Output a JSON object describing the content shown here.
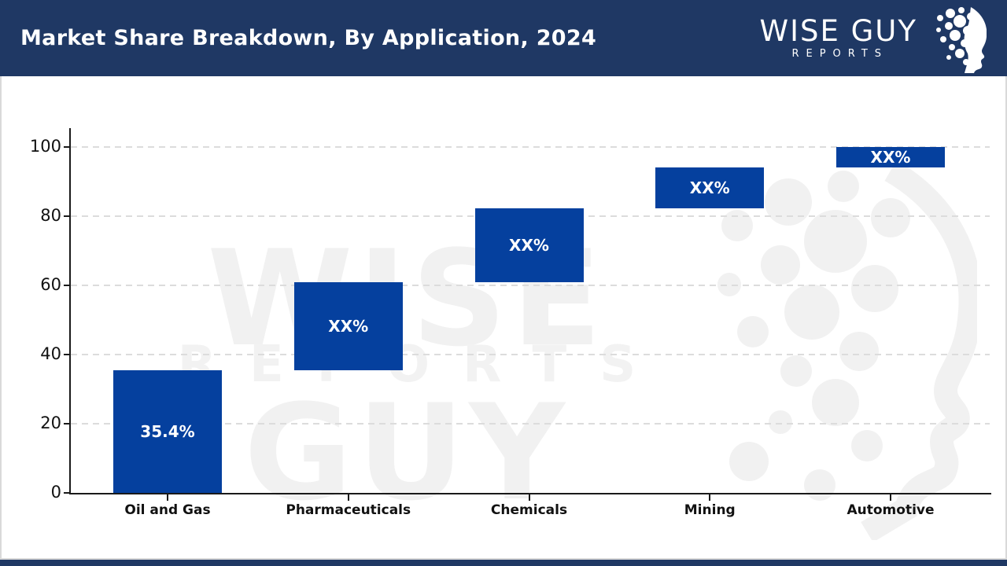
{
  "header": {
    "title": "Market Share Breakdown, By Application, 2024",
    "logo": {
      "primary": "WISE GUY",
      "secondary": "REPORTS"
    }
  },
  "watermark": {
    "primary": "WISE GUY",
    "secondary": "REPORTS"
  },
  "colors": {
    "header_bg": "#1f3864",
    "bar": "#05409e",
    "grid": "#dcdcdc",
    "axis": "#1a1a1a",
    "bar_label": "#ffffff",
    "frame_border": "#d9d9d9",
    "watermark": "#f1f1f1"
  },
  "chart_data": {
    "type": "bar",
    "variant": "waterfall-floating-bars",
    "title": "Market Share Breakdown, By Application, 2024",
    "categories": [
      "Oil and Gas",
      "Pharmaceuticals",
      "Chemicals",
      "Mining",
      "Automotive"
    ],
    "segments": [
      {
        "category": "Oil and Gas",
        "start": 0,
        "end": 35.4,
        "label": "35.4%"
      },
      {
        "category": "Pharmaceuticals",
        "start": 35.4,
        "end": 60.8,
        "label": "XX%"
      },
      {
        "category": "Chemicals",
        "start": 60.8,
        "end": 82.3,
        "label": "XX%"
      },
      {
        "category": "Mining",
        "start": 82.3,
        "end": 94.0,
        "label": "XX%"
      },
      {
        "category": "Automotive",
        "start": 94.0,
        "end": 100,
        "label": "XX%"
      }
    ],
    "xlabel": "",
    "ylabel": "",
    "ylim": [
      0,
      100
    ],
    "yticks": [
      0,
      20,
      40,
      60,
      80,
      100
    ],
    "grid": "horizontal-dashed",
    "legend": "none"
  }
}
